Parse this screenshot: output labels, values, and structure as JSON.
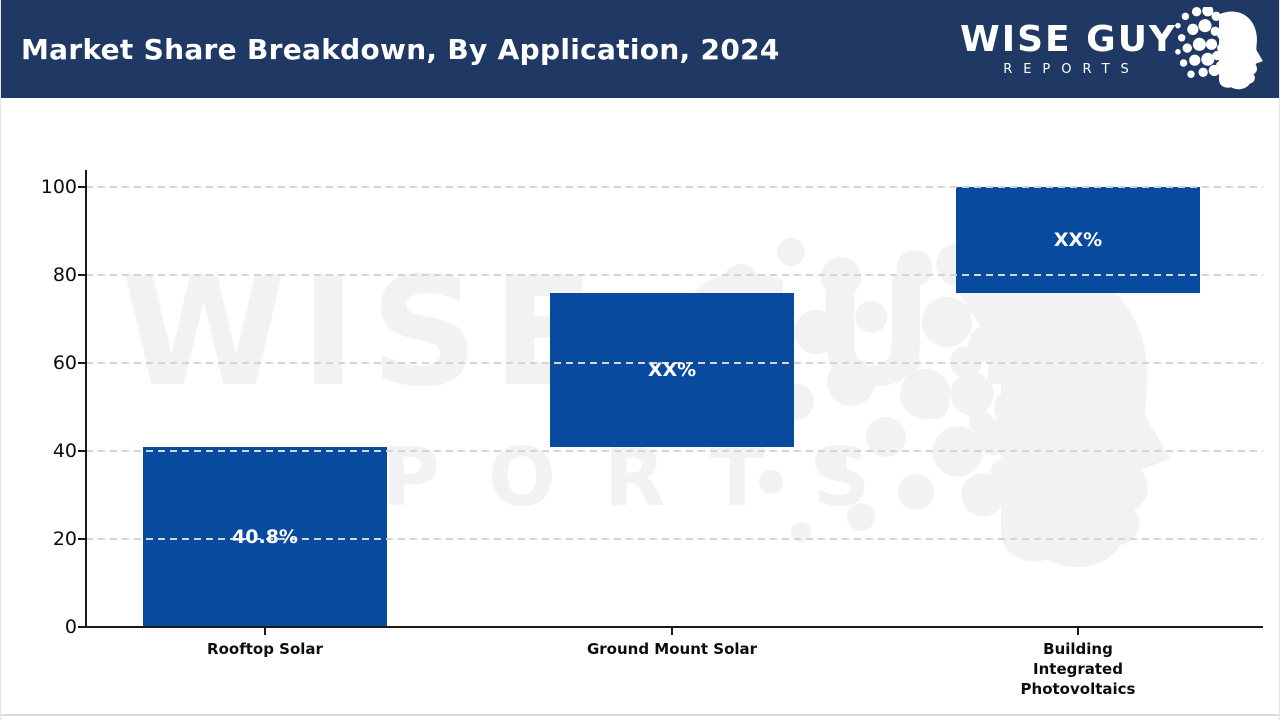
{
  "header": {
    "title": "Market Share Breakdown, By Application, 2024",
    "bg_color": "#1f3864"
  },
  "logo": {
    "wordmark": "WISE GUY",
    "sub": "REPORTS"
  },
  "watermark": {
    "line1": "WISE GUY",
    "line2": "REPORTS"
  },
  "chart_data": {
    "type": "bar",
    "subtype": "waterfall-stacked-percentage",
    "title": "Market Share Breakdown, By Application, 2024",
    "categories": [
      [
        "Rooftop Solar"
      ],
      [
        "Ground Mount Solar"
      ],
      [
        "Building",
        "Integrated",
        "Photovoltaics"
      ]
    ],
    "segments": [
      {
        "category": "Rooftop Solar",
        "start": 0,
        "end": 40.8,
        "label": "40.8%"
      },
      {
        "category": "Ground Mount Solar",
        "start": 40.8,
        "end": 75.9,
        "label": "XX%"
      },
      {
        "category": "Building Integrated Photovoltaics",
        "start": 75.9,
        "end": 100,
        "label": "XX%"
      }
    ],
    "ylim": [
      0,
      100
    ],
    "yticks": [
      0,
      20,
      40,
      60,
      80,
      100
    ],
    "grid": true,
    "grid_style": "dashed",
    "legend": false,
    "bar_color": "#084a9e",
    "bar_label_color": "#ffffff",
    "axis_color": "#1a1a1a",
    "gridline_color": "#d4d4d4"
  }
}
